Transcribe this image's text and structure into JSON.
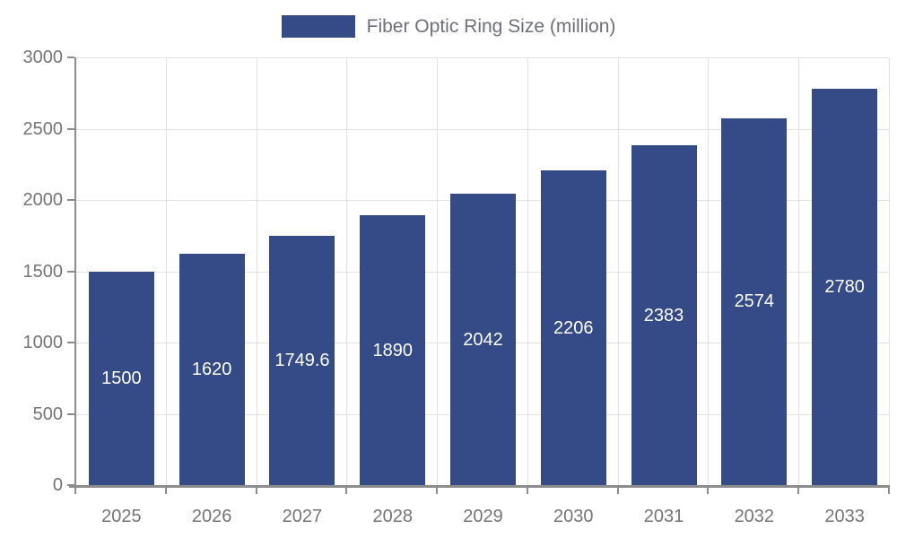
{
  "legend": {
    "label": "Fiber Optic Ring Size (million)"
  },
  "chart_data": {
    "type": "bar",
    "title": "Fiber Optic Ring Size (million)",
    "categories": [
      "2025",
      "2026",
      "2027",
      "2028",
      "2029",
      "2030",
      "2031",
      "2032",
      "2033"
    ],
    "values": [
      1500,
      1620,
      1749.6,
      1890,
      2042,
      2206,
      2383,
      2574,
      2780
    ],
    "series_name": "Fiber Optic Ring Size (million)",
    "xlabel": "",
    "ylabel": "",
    "ylim": [
      0,
      3000
    ],
    "ytick_interval": 500,
    "ytick_labels": [
      "0",
      "500",
      "1000",
      "1500",
      "2000",
      "2500",
      "3000"
    ],
    "grid": true,
    "legend_position": "top-center",
    "bar_label_position": "inside-center",
    "colors": {
      "bar": "#354B87",
      "bar_label": "#FFFFFF",
      "grid_line": "#E2E2E2",
      "axis_line": "#8C8C8C",
      "tick_label": "#757575",
      "legend_text": "#6E7079"
    }
  }
}
